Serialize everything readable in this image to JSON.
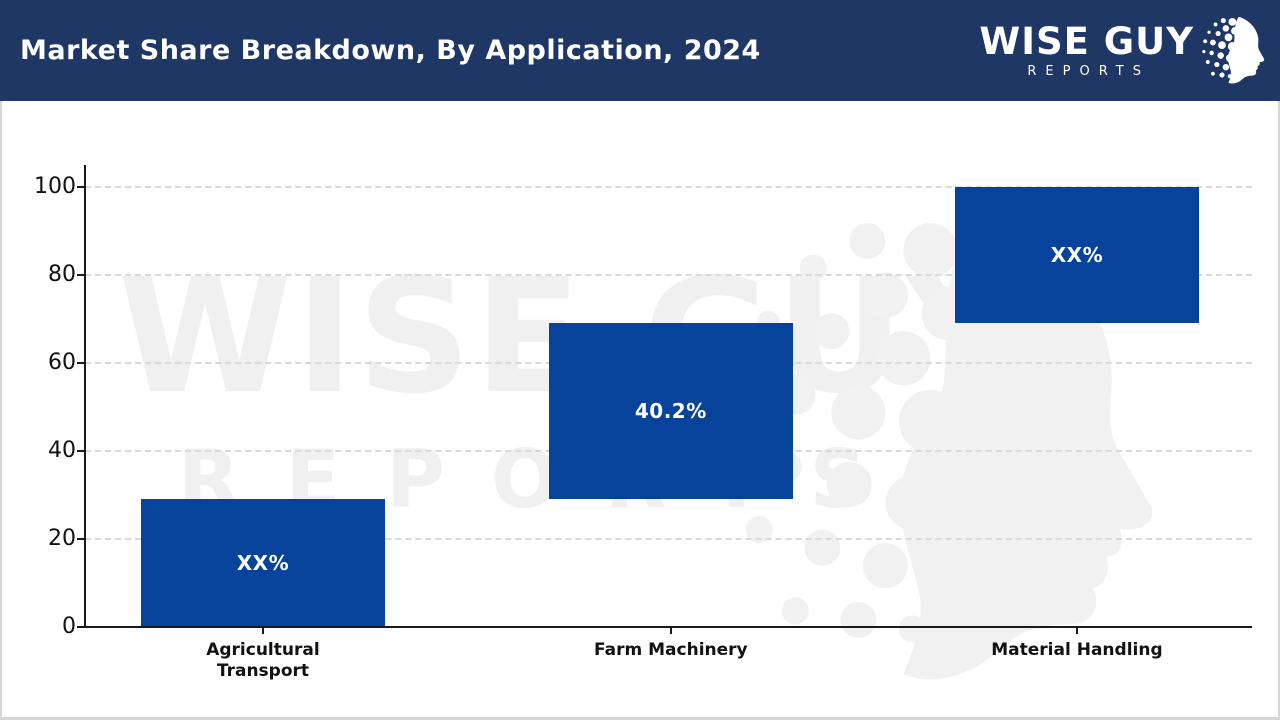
{
  "header": {
    "title": "Market Share Breakdown, By Application, 2024",
    "logo_main": "WISE GUY",
    "logo_sub": "REPORTS"
  },
  "watermark": {
    "big": "WISE GUY",
    "sub": "REPORTS"
  },
  "chart_data": {
    "type": "bar",
    "variant": "floating-waterfall",
    "title": "Market Share Breakdown, By Application, 2024",
    "categories": [
      "Agricultural\nTransport",
      "Farm Machinery",
      "Material Handling"
    ],
    "segments": [
      {
        "category": "Agricultural Transport",
        "start": 0,
        "end": 29,
        "value_label": "XX%"
      },
      {
        "category": "Farm Machinery",
        "start": 29,
        "end": 69.2,
        "value_label": "40.2%"
      },
      {
        "category": "Material Handling",
        "start": 69.2,
        "end": 100,
        "value_label": "XX%"
      }
    ],
    "xlabel": "",
    "ylabel": "",
    "yticks": [
      0,
      20,
      40,
      60,
      80,
      100
    ],
    "ylim": [
      0,
      105
    ],
    "grid": {
      "horizontal": true,
      "style": "dashed"
    },
    "legend": "none",
    "colors": {
      "bar": "#07429b",
      "bar_label": "#ffffff",
      "grid": "#d9d9d9",
      "axis": "#1a1a1a",
      "header_bg": "#1e3765",
      "watermark": "#f0f0f0"
    }
  }
}
